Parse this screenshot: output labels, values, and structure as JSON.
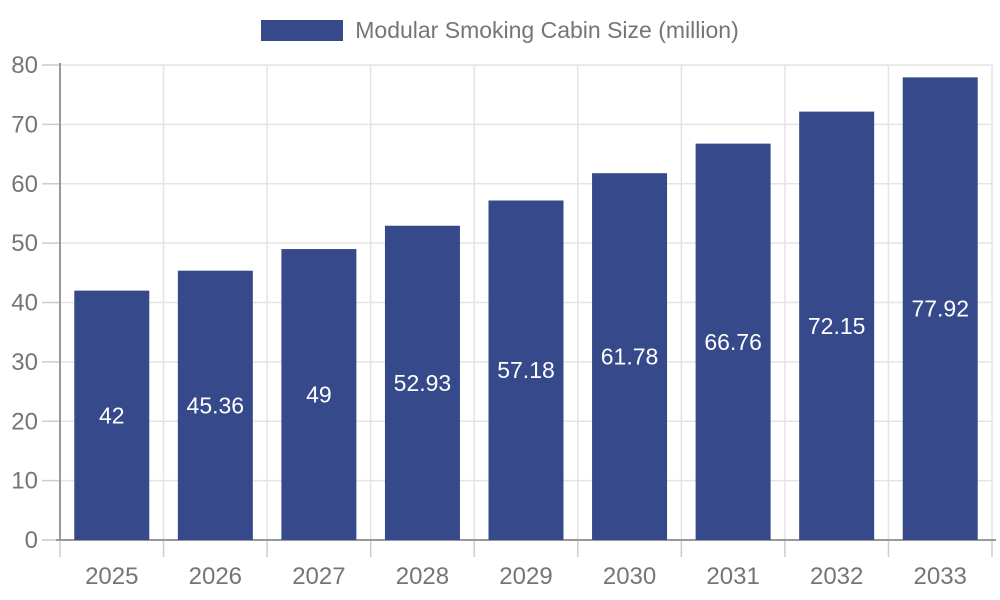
{
  "legend": {
    "label": "Modular Smoking Cabin Size (million)",
    "position": "top"
  },
  "chart_data": {
    "type": "bar",
    "title": "Modular Smoking Cabin Size (million)",
    "xlabel": "",
    "ylabel": "",
    "categories": [
      "2025",
      "2026",
      "2027",
      "2028",
      "2029",
      "2030",
      "2031",
      "2032",
      "2033"
    ],
    "values": [
      42,
      45.36,
      49,
      52.93,
      57.18,
      61.78,
      66.76,
      72.15,
      77.92
    ],
    "value_labels": [
      "42",
      "45.36",
      "49",
      "52.93",
      "57.18",
      "61.78",
      "66.76",
      "72.15",
      "77.92"
    ],
    "ylim": [
      0,
      80
    ],
    "yticks": [
      0,
      10,
      20,
      30,
      40,
      50,
      60,
      70,
      80
    ],
    "grid": true,
    "legend_position": "top",
    "colors": {
      "bar": "#36498b",
      "grid": "#e4e4e4",
      "axis": "#999999",
      "tick": "#cccccc",
      "axis_label": "#757575",
      "value_label": "#ffffff",
      "background": "#ffffff"
    }
  }
}
